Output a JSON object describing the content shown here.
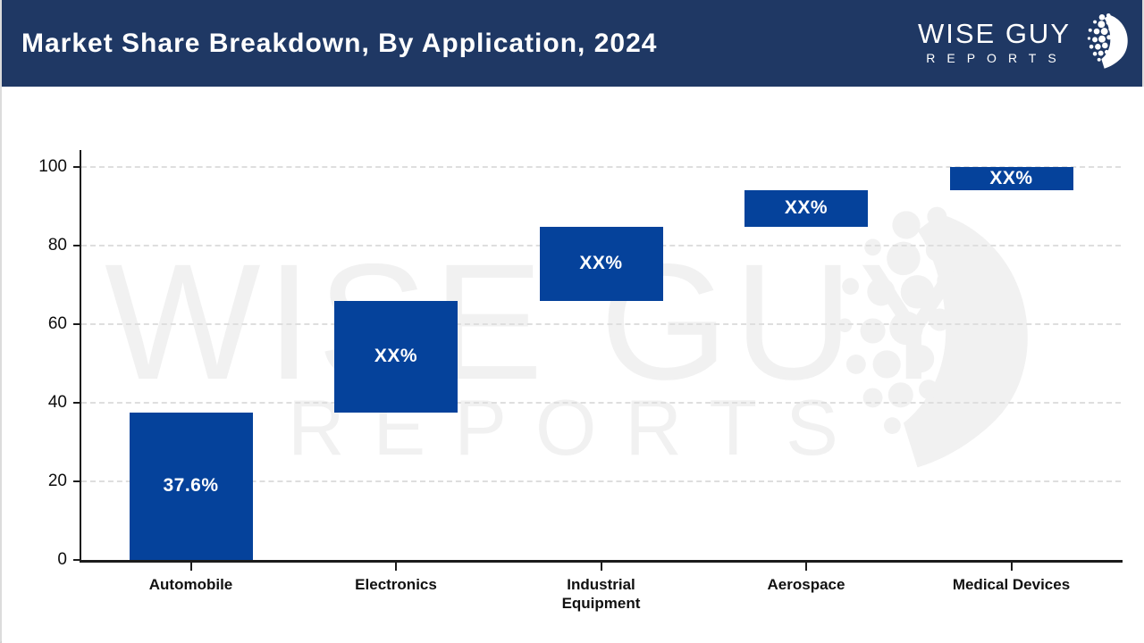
{
  "header": {
    "title": "Market Share Breakdown, By Application, 2024",
    "logo_line1": "WISE GUY",
    "logo_line2": "REPORTS"
  },
  "watermark": {
    "line1": "WISE GUY",
    "line2": "REPORTS"
  },
  "chart_data": {
    "type": "bar",
    "subtype": "stacked-waterfall",
    "title": "Market Share Breakdown, By Application, 2024",
    "categories": [
      "Automobile",
      "Electronics",
      "Industrial Equipment",
      "Aerospace",
      "Medical Devices"
    ],
    "segments": [
      {
        "category": "Automobile",
        "start": 0,
        "end": 37.6,
        "label": "37.6%"
      },
      {
        "category": "Electronics",
        "start": 37.6,
        "end": 66.0,
        "label": "XX%"
      },
      {
        "category": "Industrial Equipment",
        "start": 66.0,
        "end": 84.7,
        "label": "XX%"
      },
      {
        "category": "Aerospace",
        "start": 84.7,
        "end": 94.2,
        "label": "XX%"
      },
      {
        "category": "Medical Devices",
        "start": 94.2,
        "end": 100.0,
        "label": "XX%"
      }
    ],
    "yticks": [
      0,
      20,
      40,
      60,
      80,
      100
    ],
    "ylim": [
      0,
      104
    ],
    "xlabel": "",
    "ylabel": "",
    "grid": "horizontal-dashed",
    "legend": "none",
    "bar_color": "#05429b",
    "bar_label_color": "#ffffff",
    "axis_color": "#1c1c1c",
    "header_color": "#1f3864"
  }
}
